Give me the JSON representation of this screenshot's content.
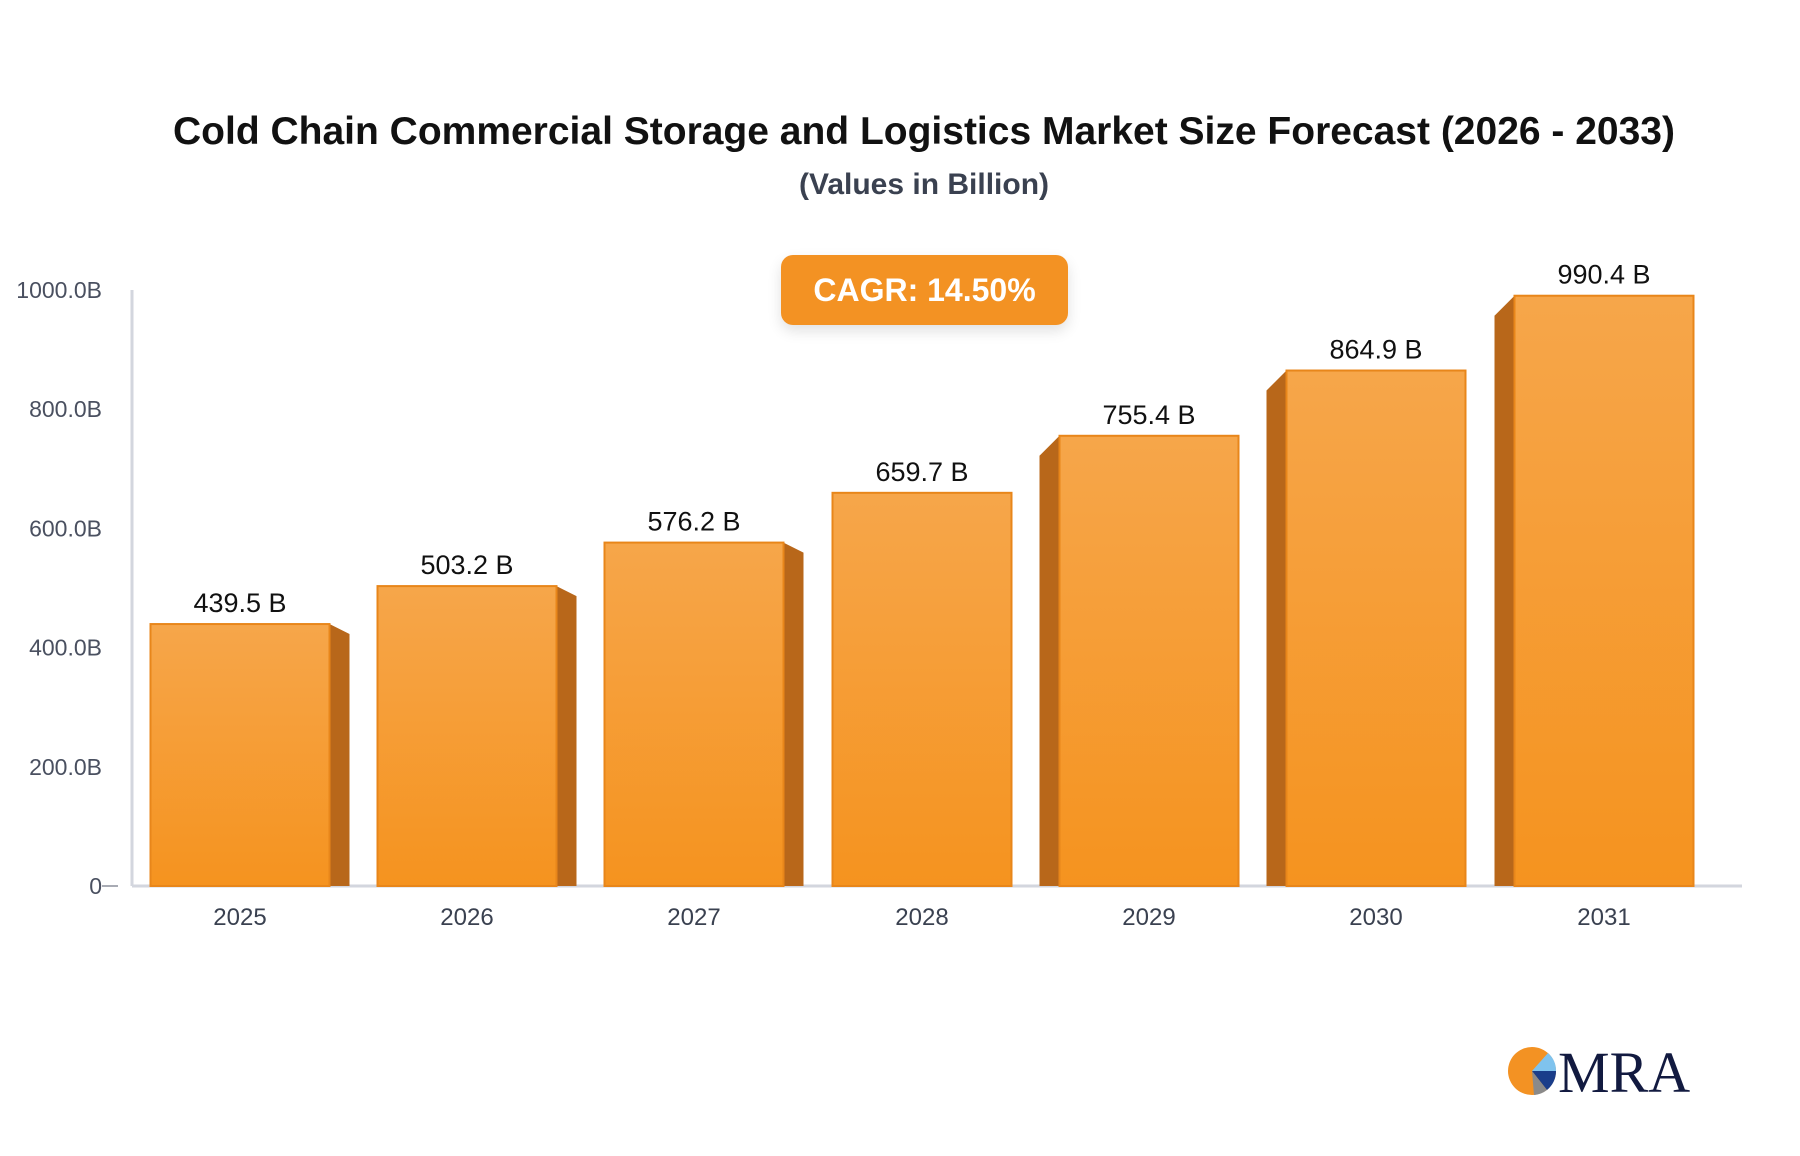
{
  "chart_data": {
    "type": "bar",
    "title": "Cold Chain Commercial Storage and Logistics Market Size Forecast (2026 - 2033)",
    "subtitle": "(Values in Billion)",
    "annotation": "CAGR: 14.50%",
    "categories": [
      "2025",
      "2026",
      "2027",
      "2028",
      "2029",
      "2030",
      "2031"
    ],
    "values": [
      439.5,
      503.2,
      576.2,
      659.7,
      755.4,
      864.9,
      990.4
    ],
    "data_labels": [
      "439.5 B",
      "503.2 B",
      "576.2 B",
      "659.7 B",
      "755.4 B",
      "864.9 B",
      "990.4 B"
    ],
    "ylim": [
      0,
      1000
    ],
    "yticks": [
      0,
      200,
      400,
      600,
      800,
      1000
    ],
    "ytick_labels": [
      "0",
      "200.0B",
      "400.0B",
      "600.0B",
      "800.0B",
      "1000.0B"
    ],
    "grid": false,
    "colors": {
      "bar": "#f5a040",
      "bar_bottom": "#f59320",
      "side": "#b8671a",
      "badge": "#f39223"
    }
  },
  "logo": {
    "text": "MRA"
  }
}
